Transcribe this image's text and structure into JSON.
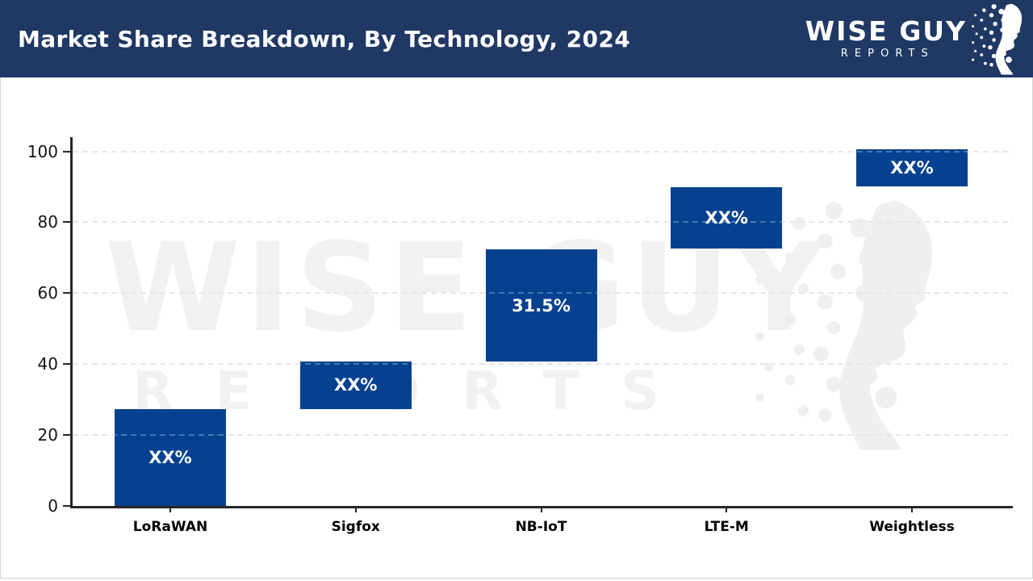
{
  "header": {
    "title": "Market Share Breakdown, By Technology, 2024",
    "logo": {
      "line1": "WISE GUY",
      "line2": "REPORTS"
    }
  },
  "watermark": {
    "line1": "WISE GUY",
    "line2": "REPORTS"
  },
  "colors": {
    "header_bg": "#1f3864",
    "bar": "#05418f",
    "bar_label": "#ffffff",
    "axis": "#262626",
    "grid": "#dcdcdc",
    "grid_over_bar": "rgba(255,255,255,0.28)",
    "tick_text": "#141414",
    "title_text": "#ffffff",
    "watermark": "#f1f1f1"
  },
  "chart_data": {
    "type": "bar",
    "variant": "waterfall-floating-bars",
    "title": "Market Share Breakdown, By Technology, 2024",
    "xlabel": "",
    "ylabel": "",
    "categories": [
      "LoRaWAN",
      "Sigfox",
      "NB-IoT",
      "LTE-M",
      "Weightless"
    ],
    "segments": [
      {
        "category": "LoRaWAN",
        "start": 0,
        "end": 27.3,
        "label": "XX%"
      },
      {
        "category": "Sigfox",
        "start": 27.3,
        "end": 40.8,
        "label": "XX%"
      },
      {
        "category": "NB-IoT",
        "start": 40.8,
        "end": 72.3,
        "label": "31.5%"
      },
      {
        "category": "LTE-M",
        "start": 72.5,
        "end": 90.0,
        "label": "XX%"
      },
      {
        "category": "Weightless",
        "start": 90.2,
        "end": 100.5,
        "label": "XX%"
      }
    ],
    "yticks": [
      0,
      20,
      40,
      60,
      80,
      100
    ],
    "ylim": [
      0,
      104
    ],
    "grid": "dashed-horizontal",
    "legend": false
  }
}
